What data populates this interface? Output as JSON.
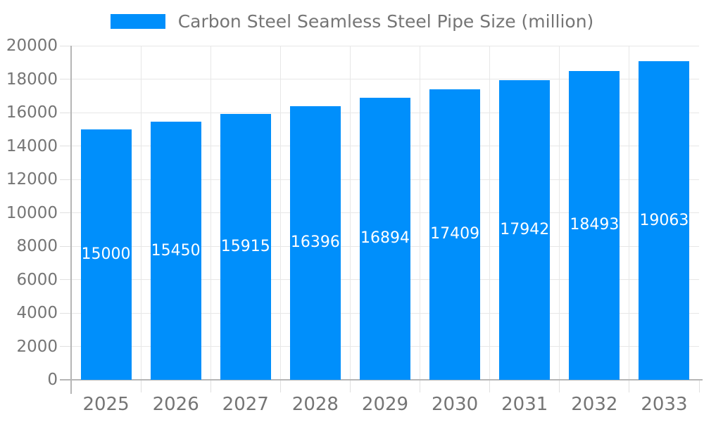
{
  "legend": {
    "label": "Carbon Steel Seamless Steel Pipe Size (million)"
  },
  "chart_data": {
    "type": "bar",
    "title": "",
    "legend": "Carbon Steel Seamless Steel Pipe Size (million)",
    "legend_position": "top",
    "categories": [
      "2025",
      "2026",
      "2027",
      "2028",
      "2029",
      "2030",
      "2031",
      "2032",
      "2033"
    ],
    "values": [
      15000,
      15450,
      15915,
      16396,
      16894,
      17409,
      17942,
      18493,
      19063
    ],
    "value_labels": [
      "15000",
      "15450",
      "15915",
      "16396",
      "16894",
      "17409",
      "17942",
      "18493",
      "19063"
    ],
    "xlabel": "",
    "ylabel": "",
    "ylim": [
      0,
      20000
    ],
    "ytick_step": 2000,
    "ytick_labels": [
      "0",
      "2000",
      "4000",
      "6000",
      "8000",
      "10000",
      "12000",
      "14000",
      "16000",
      "18000",
      "20000"
    ],
    "grid": true,
    "colors": {
      "bar": "#008FFB",
      "bar_label": "#ffffff",
      "axis_text": "#757575",
      "grid_line": "#e7e7e7",
      "axis_line": "#b6b6b6",
      "tick_line": "#e0e0e0",
      "background": "#ffffff"
    }
  }
}
